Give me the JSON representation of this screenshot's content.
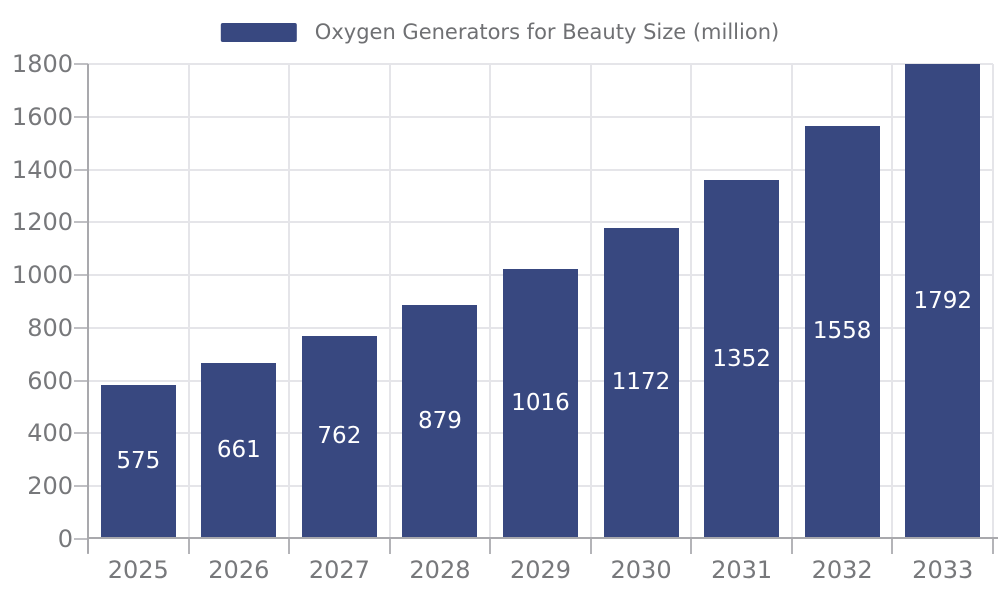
{
  "chart_data": {
    "type": "bar",
    "title": "Oxygen Generators for Beauty Size (million)",
    "categories": [
      "2025",
      "2026",
      "2027",
      "2028",
      "2029",
      "2030",
      "2031",
      "2032",
      "2033"
    ],
    "values": [
      575,
      661,
      762,
      879,
      1016,
      1172,
      1352,
      1558,
      1792
    ],
    "yticks": [
      "0",
      "200",
      "400",
      "600",
      "800",
      "1000",
      "1200",
      "1400",
      "1600",
      "1800"
    ],
    "ylim": [
      0,
      1800
    ],
    "ytick_interval": 200,
    "xlabel": "",
    "ylabel": "",
    "grid": true,
    "legend_position": "top-center",
    "bar_labels_position": "center",
    "colors": {
      "bar": "#384880",
      "bar_label": "#ffffff",
      "grid_line": "#e5e5e9",
      "axis_line": "#a9a9ad",
      "tick": "#b4b4b8",
      "axis_label": "#77787b",
      "legend_text": "#6f7073",
      "background": "#ffffff"
    }
  }
}
